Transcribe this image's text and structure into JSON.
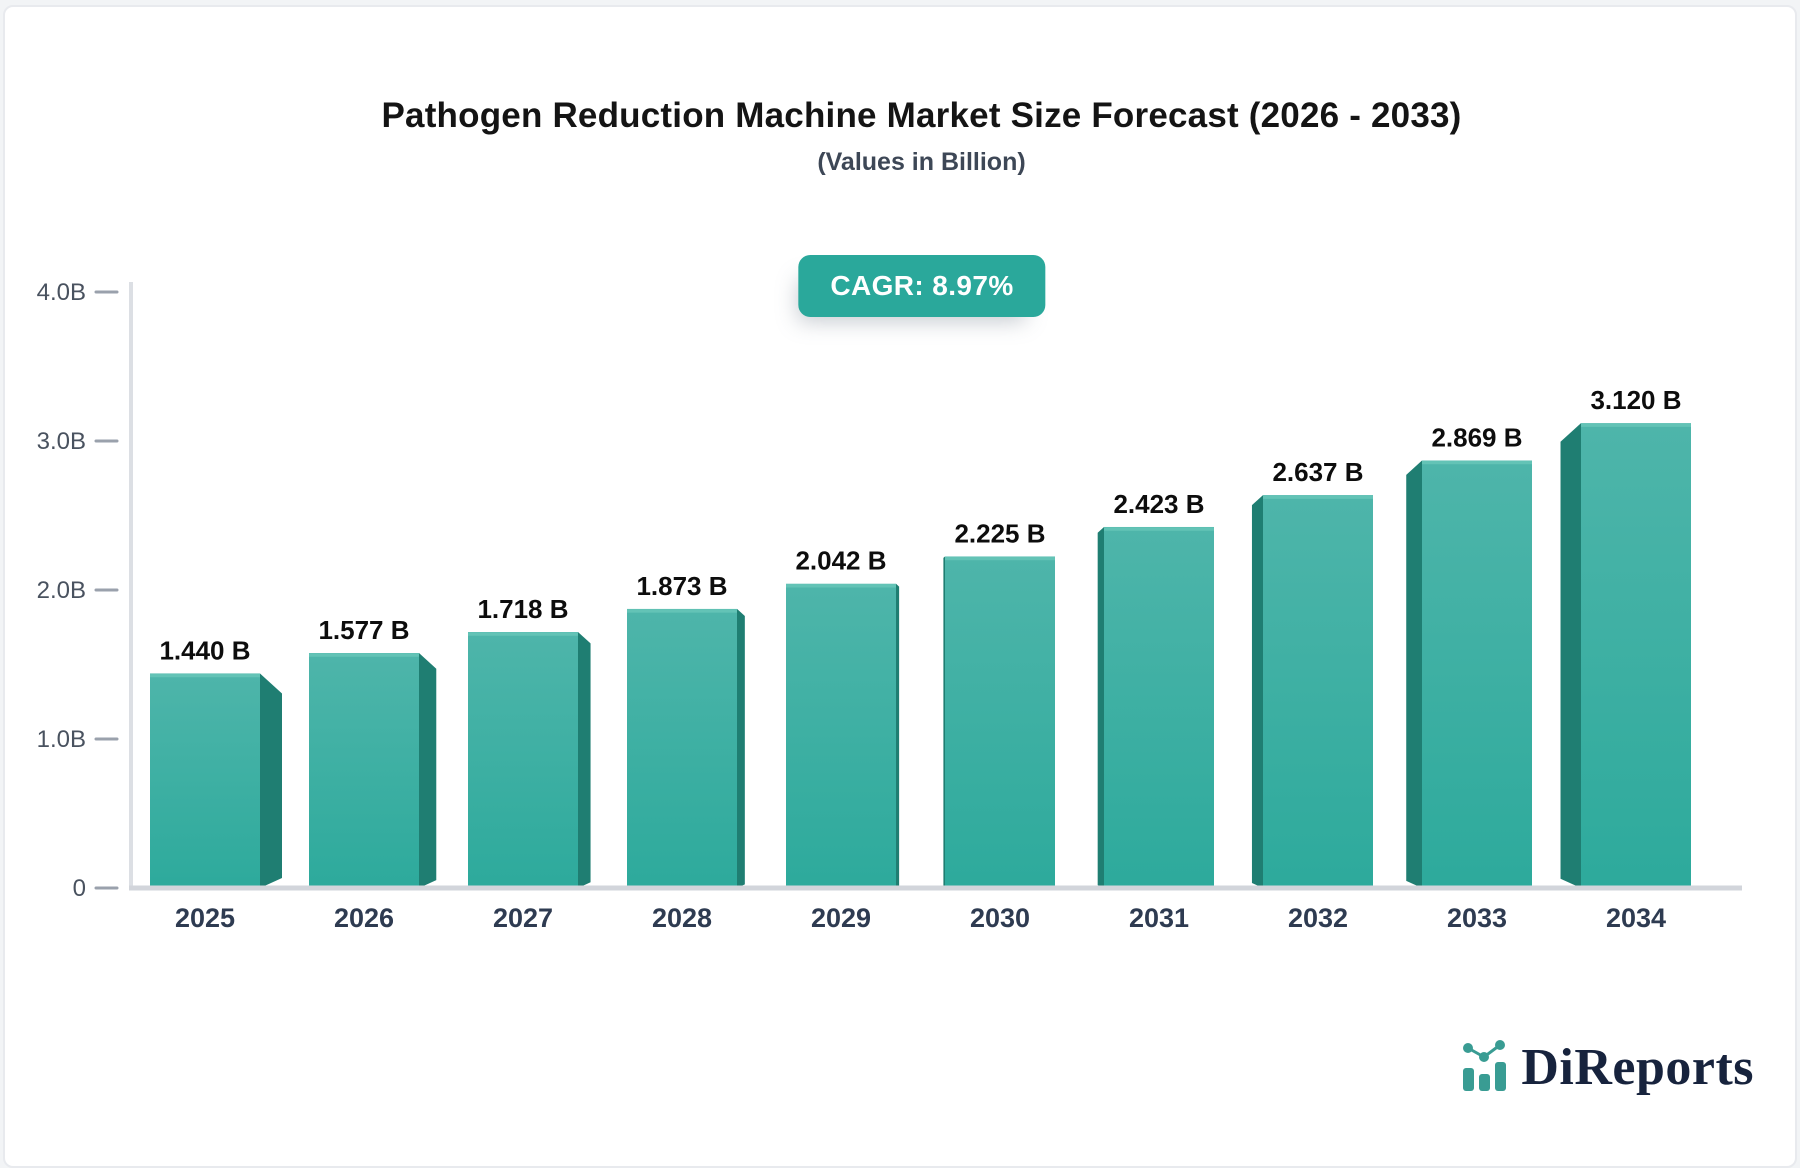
{
  "header": {
    "title": "Pathogen Reduction Machine Market Size Forecast (2026 - 2033)",
    "subtitle": "(Values in Billion)"
  },
  "badge": {
    "label": "CAGR: 8.97%",
    "bg_color": "#2aa89b",
    "text_color": "#ffffff"
  },
  "chart_data": {
    "type": "bar",
    "title": "Pathogen Reduction Machine Market Size Forecast (2026 - 2033)",
    "subtitle": "(Values in Billion)",
    "categories": [
      "2025",
      "2026",
      "2027",
      "2028",
      "2029",
      "2030",
      "2031",
      "2032",
      "2033",
      "2034"
    ],
    "values": [
      1.44,
      1.577,
      1.718,
      1.873,
      2.042,
      2.225,
      2.423,
      2.637,
      2.869,
      3.12
    ],
    "value_labels": [
      "1.440 B",
      "1.577 B",
      "1.718 B",
      "1.873 B",
      "2.042 B",
      "2.225 B",
      "2.423 B",
      "2.637 B",
      "2.869 B",
      "3.120 B"
    ],
    "xlabel": "",
    "ylabel": "",
    "ylim": [
      0,
      4.0
    ],
    "yticks": [
      {
        "value": 0,
        "label": "0"
      },
      {
        "value": 1.0,
        "label": "1.0B"
      },
      {
        "value": 2.0,
        "label": "2.0B"
      },
      {
        "value": 3.0,
        "label": "3.0B"
      },
      {
        "value": 4.0,
        "label": "4.0B"
      }
    ],
    "grid": false,
    "legend": null,
    "style": "3d-perspective-bars",
    "colors": {
      "bar_front_top": "#4eb5aa",
      "bar_front_bottom": "#2daa9c",
      "bar_top_highlight": "#63c3b6",
      "bar_side": "#1f7e72",
      "axis_line": "#dcdfe4",
      "baseline": "#d2d5db",
      "tick_dash": "#9aa1ac",
      "ytick_text": "#49525f",
      "xtick_text": "#2e3b51",
      "value_text": "#0d0d0d"
    }
  },
  "logo": {
    "text": "DiReports",
    "text_color": "#17233d",
    "icon": "mini-bar-chart-icon",
    "icon_color": "#399c93"
  }
}
